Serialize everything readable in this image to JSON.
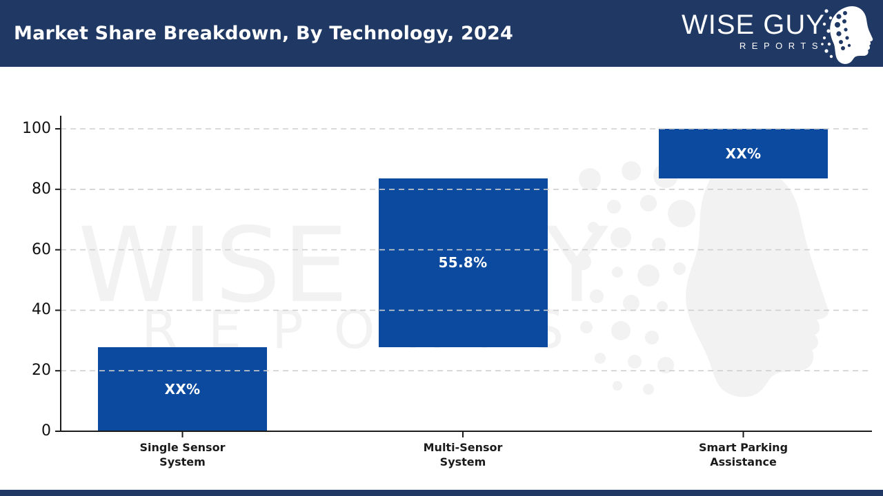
{
  "header": {
    "title": "Market Share Breakdown, By Technology, 2024",
    "logo": {
      "line1": "WISE GUY",
      "line2": "REPORTS"
    }
  },
  "watermark": {
    "line1": "WISE GUY",
    "line2": "REPORTS"
  },
  "chart_data": {
    "type": "bar",
    "subtype": "waterfall",
    "title": "Market Share Breakdown, By Technology, 2024",
    "categories": [
      "Single Sensor\nSystem",
      "Multi-Sensor\nSystem",
      "Smart Parking\nAssistance"
    ],
    "series": [
      {
        "name": "Market Share (%)",
        "base": [
          0,
          27.8,
          83.6
        ],
        "values": [
          27.8,
          55.8,
          16.4
        ]
      }
    ],
    "bar_labels": [
      "XX%",
      "55.8%",
      "XX%"
    ],
    "ylim": [
      0,
      100
    ],
    "yticks": [
      0,
      20,
      40,
      60,
      80,
      100
    ],
    "xlabel": "",
    "ylabel": "",
    "grid": "horizontal-dashed",
    "legend": "none"
  },
  "colors": {
    "header_bg": "#203864",
    "footer_bg": "#203864",
    "bar": "#0b4a9e",
    "grid": "#cfcfcf",
    "axis": "#1a1a1a",
    "watermark": "#f2f2f3",
    "bar_label_text": "#ffffff",
    "title_text": "#ffffff"
  }
}
